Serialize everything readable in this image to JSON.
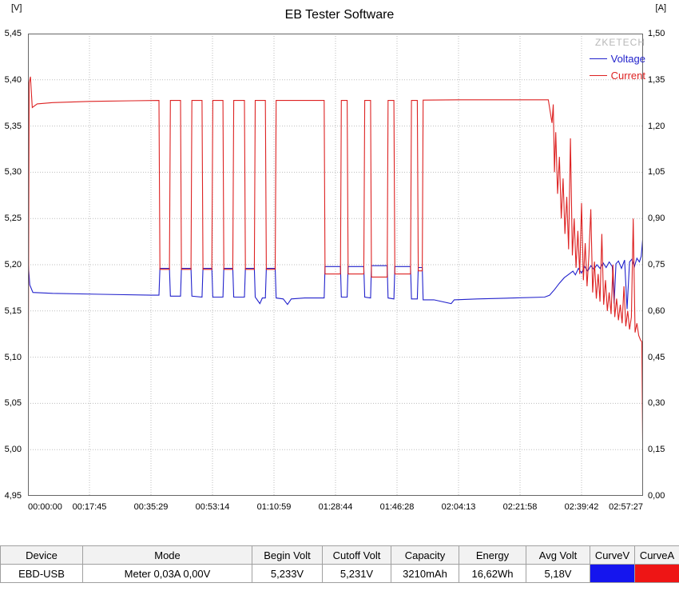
{
  "window": {
    "title": "EB Tester Software"
  },
  "legend": {
    "watermark": "ZKETECH",
    "items": [
      {
        "label": "Voltage",
        "color": "#2222cc"
      },
      {
        "label": "Current",
        "color": "#dd2222"
      }
    ]
  },
  "chart_data": {
    "type": "line",
    "title": "EB Tester Software",
    "grid": true,
    "legend_position": "top-right",
    "x_axis": {
      "ticks": [
        "00:00:00",
        "00:17:45",
        "00:35:29",
        "00:53:14",
        "01:10:59",
        "01:28:44",
        "01:46:28",
        "02:04:13",
        "02:21:58",
        "02:39:42",
        "02:57:27"
      ]
    },
    "y_axis_left": {
      "unit": "[V]",
      "range": [
        4.95,
        5.45
      ],
      "ticks": [
        "5,45",
        "5,40",
        "5,35",
        "5,30",
        "5,25",
        "5,20",
        "5,15",
        "5,10",
        "5,05",
        "5,00",
        "4,95"
      ]
    },
    "y_axis_right": {
      "unit": "[A]",
      "range": [
        0.0,
        1.5
      ],
      "ticks": [
        "1,50",
        "1,35",
        "1,20",
        "1,05",
        "0,90",
        "0,75",
        "0,60",
        "0,45",
        "0,30",
        "0,15",
        "0,00"
      ]
    },
    "series": [
      {
        "name": "Voltage",
        "axis": "left",
        "color": "#2222cc",
        "points": [
          [
            0.0,
            5.205
          ],
          [
            0.003,
            5.178
          ],
          [
            0.008,
            5.17
          ],
          [
            0.04,
            5.169
          ],
          [
            0.12,
            5.168
          ],
          [
            0.2,
            5.167
          ],
          [
            0.213,
            5.167
          ],
          [
            0.2145,
            5.196
          ],
          [
            0.23,
            5.196
          ],
          [
            0.2315,
            5.166
          ],
          [
            0.248,
            5.166
          ],
          [
            0.2495,
            5.196
          ],
          [
            0.265,
            5.196
          ],
          [
            0.2665,
            5.166
          ],
          [
            0.283,
            5.165
          ],
          [
            0.2845,
            5.196
          ],
          [
            0.299,
            5.196
          ],
          [
            0.3005,
            5.165
          ],
          [
            0.317,
            5.165
          ],
          [
            0.3185,
            5.196
          ],
          [
            0.333,
            5.196
          ],
          [
            0.3345,
            5.165
          ],
          [
            0.352,
            5.165
          ],
          [
            0.3535,
            5.196
          ],
          [
            0.368,
            5.196
          ],
          [
            0.3695,
            5.165
          ],
          [
            0.377,
            5.158
          ],
          [
            0.381,
            5.164
          ],
          [
            0.386,
            5.164
          ],
          [
            0.3875,
            5.196
          ],
          [
            0.402,
            5.196
          ],
          [
            0.4035,
            5.164
          ],
          [
            0.415,
            5.163
          ],
          [
            0.422,
            5.157
          ],
          [
            0.428,
            5.163
          ],
          [
            0.45,
            5.164
          ],
          [
            0.47,
            5.164
          ],
          [
            0.4815,
            5.164
          ],
          [
            0.483,
            5.198
          ],
          [
            0.508,
            5.198
          ],
          [
            0.5095,
            5.165
          ],
          [
            0.519,
            5.165
          ],
          [
            0.5205,
            5.198
          ],
          [
            0.546,
            5.198
          ],
          [
            0.5475,
            5.165
          ],
          [
            0.557,
            5.164
          ],
          [
            0.5585,
            5.199
          ],
          [
            0.584,
            5.199
          ],
          [
            0.5855,
            5.164
          ],
          [
            0.595,
            5.163
          ],
          [
            0.5965,
            5.198
          ],
          [
            0.622,
            5.198
          ],
          [
            0.6235,
            5.163
          ],
          [
            0.633,
            5.163
          ],
          [
            0.6345,
            5.197
          ],
          [
            0.641,
            5.197
          ],
          [
            0.6425,
            5.162
          ],
          [
            0.66,
            5.162
          ],
          [
            0.688,
            5.158
          ],
          [
            0.693,
            5.162
          ],
          [
            0.73,
            5.163
          ],
          [
            0.79,
            5.164
          ],
          [
            0.84,
            5.165
          ],
          [
            0.848,
            5.167
          ],
          [
            0.856,
            5.173
          ],
          [
            0.864,
            5.18
          ],
          [
            0.872,
            5.186
          ],
          [
            0.88,
            5.19
          ],
          [
            0.886,
            5.193
          ],
          [
            0.89,
            5.189
          ],
          [
            0.895,
            5.196
          ],
          [
            0.9,
            5.191
          ],
          [
            0.905,
            5.198
          ],
          [
            0.91,
            5.193
          ],
          [
            0.915,
            5.199
          ],
          [
            0.92,
            5.195
          ],
          [
            0.925,
            5.2
          ],
          [
            0.93,
            5.196
          ],
          [
            0.935,
            5.202
          ],
          [
            0.94,
            5.197
          ],
          [
            0.945,
            5.203
          ],
          [
            0.95,
            5.198
          ],
          [
            0.953,
            5.158
          ],
          [
            0.956,
            5.201
          ],
          [
            0.96,
            5.204
          ],
          [
            0.965,
            5.196
          ],
          [
            0.97,
            5.205
          ],
          [
            0.974,
            5.152
          ],
          [
            0.978,
            5.203
          ],
          [
            0.982,
            5.206
          ],
          [
            0.986,
            5.198
          ],
          [
            0.99,
            5.207
          ],
          [
            0.994,
            5.203
          ],
          [
            0.997,
            5.209
          ],
          [
            1.0,
            5.232
          ]
        ]
      },
      {
        "name": "Current",
        "axis": "right",
        "color": "#dd2222",
        "points": [
          [
            0.0,
            0.06
          ],
          [
            0.002,
            1.34
          ],
          [
            0.004,
            1.36
          ],
          [
            0.007,
            1.26
          ],
          [
            0.015,
            1.272
          ],
          [
            0.04,
            1.276
          ],
          [
            0.1,
            1.28
          ],
          [
            0.17,
            1.282
          ],
          [
            0.213,
            1.283
          ],
          [
            0.2145,
            0.735
          ],
          [
            0.23,
            0.735
          ],
          [
            0.2315,
            1.283
          ],
          [
            0.248,
            1.283
          ],
          [
            0.2495,
            0.735
          ],
          [
            0.265,
            0.735
          ],
          [
            0.2665,
            1.283
          ],
          [
            0.283,
            1.283
          ],
          [
            0.2845,
            0.735
          ],
          [
            0.299,
            0.735
          ],
          [
            0.3005,
            1.283
          ],
          [
            0.317,
            1.283
          ],
          [
            0.3185,
            0.735
          ],
          [
            0.333,
            0.735
          ],
          [
            0.3345,
            1.283
          ],
          [
            0.352,
            1.283
          ],
          [
            0.3535,
            0.735
          ],
          [
            0.368,
            0.735
          ],
          [
            0.3695,
            1.283
          ],
          [
            0.386,
            1.283
          ],
          [
            0.3875,
            0.735
          ],
          [
            0.402,
            0.735
          ],
          [
            0.4035,
            1.283
          ],
          [
            0.47,
            1.283
          ],
          [
            0.4815,
            1.283
          ],
          [
            0.483,
            0.72
          ],
          [
            0.508,
            0.72
          ],
          [
            0.5095,
            1.283
          ],
          [
            0.519,
            1.283
          ],
          [
            0.5205,
            0.72
          ],
          [
            0.546,
            0.72
          ],
          [
            0.5475,
            1.283
          ],
          [
            0.557,
            1.283
          ],
          [
            0.5585,
            0.71
          ],
          [
            0.584,
            0.71
          ],
          [
            0.5855,
            1.283
          ],
          [
            0.595,
            1.283
          ],
          [
            0.5965,
            0.72
          ],
          [
            0.622,
            0.72
          ],
          [
            0.6235,
            1.283
          ],
          [
            0.633,
            1.283
          ],
          [
            0.6345,
            0.73
          ],
          [
            0.641,
            0.73
          ],
          [
            0.6425,
            1.284
          ],
          [
            0.7,
            1.285
          ],
          [
            0.8,
            1.285
          ],
          [
            0.846,
            1.285
          ],
          [
            0.852,
            1.21
          ],
          [
            0.854,
            1.27
          ],
          [
            0.856,
            1.05
          ],
          [
            0.858,
            1.18
          ],
          [
            0.861,
            0.98
          ],
          [
            0.864,
            1.1
          ],
          [
            0.867,
            0.9
          ],
          [
            0.87,
            1.03
          ],
          [
            0.873,
            0.85
          ],
          [
            0.876,
            0.97
          ],
          [
            0.879,
            0.8
          ],
          [
            0.882,
            1.16
          ],
          [
            0.885,
            0.78
          ],
          [
            0.888,
            0.9
          ],
          [
            0.891,
            0.74
          ],
          [
            0.894,
            0.86
          ],
          [
            0.897,
            0.72
          ],
          [
            0.9,
            0.95
          ],
          [
            0.903,
            0.7
          ],
          [
            0.906,
            0.82
          ],
          [
            0.909,
            0.68
          ],
          [
            0.912,
            0.78
          ],
          [
            0.915,
            0.93
          ],
          [
            0.918,
            0.66
          ],
          [
            0.921,
            0.76
          ],
          [
            0.924,
            0.64
          ],
          [
            0.927,
            0.72
          ],
          [
            0.93,
            0.63
          ],
          [
            0.933,
            0.85
          ],
          [
            0.936,
            0.62
          ],
          [
            0.939,
            0.7
          ],
          [
            0.942,
            0.6
          ],
          [
            0.945,
            0.66
          ],
          [
            0.948,
            0.59
          ],
          [
            0.951,
            0.75
          ],
          [
            0.954,
            0.58
          ],
          [
            0.957,
            0.64
          ],
          [
            0.96,
            0.57
          ],
          [
            0.963,
            0.62
          ],
          [
            0.966,
            0.56
          ],
          [
            0.969,
            0.68
          ],
          [
            0.972,
            0.55
          ],
          [
            0.975,
            0.6
          ],
          [
            0.978,
            0.54
          ],
          [
            0.981,
            0.58
          ],
          [
            0.984,
            0.9
          ],
          [
            0.987,
            0.53
          ],
          [
            0.99,
            0.56
          ],
          [
            0.993,
            0.52
          ],
          [
            0.996,
            0.505
          ],
          [
            0.998,
            0.5
          ],
          [
            1.0,
            0.02
          ]
        ]
      }
    ]
  },
  "table": {
    "headers": [
      "Device",
      "Mode",
      "Begin Volt",
      "Cutoff Volt",
      "Capacity",
      "Energy",
      "Avg Volt",
      "CurveV",
      "CurveA"
    ],
    "rows": [
      {
        "device": "EBD-USB",
        "mode": "Meter 0,03A 0,00V",
        "begin_volt": "5,233V",
        "cutoff_volt": "5,231V",
        "capacity": "3210mAh",
        "energy": "16,62Wh",
        "avg_volt": "5,18V",
        "curve_v_color": "#1515ee",
        "curve_a_color": "#ee1515"
      }
    ]
  }
}
